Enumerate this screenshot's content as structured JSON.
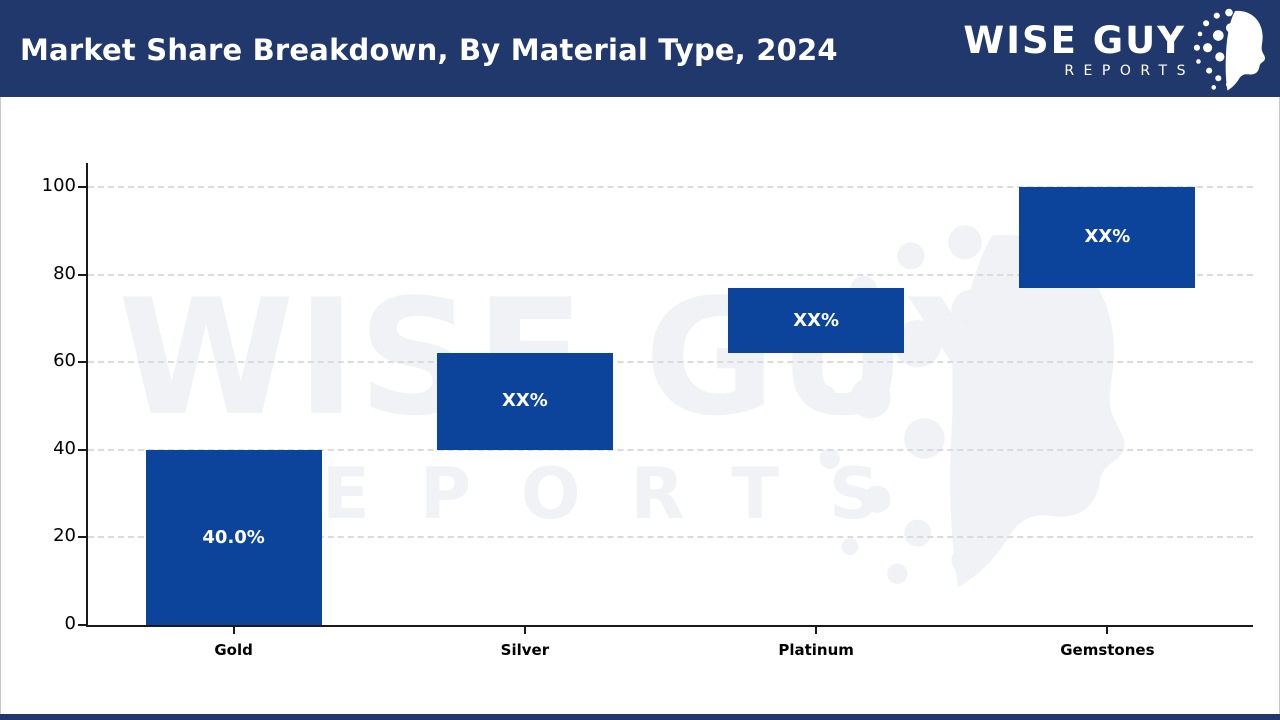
{
  "header": {
    "title": "Market Share Breakdown, By Material Type, 2024",
    "logo": {
      "line1": "WISE GUY",
      "line2": "REPORTS"
    }
  },
  "watermark": {
    "line1": "WISE GUY",
    "line2": "REPORTS"
  },
  "colors": {
    "header_navy": "#20386b",
    "bar_blue": "#0c449c",
    "gridline_gray": "#dbdbdb",
    "watermark_gray": "#f0f2f5",
    "axis_black": "#1a1a1a"
  },
  "chart_data": {
    "type": "bar",
    "subtype": "waterfall",
    "title": "Market Share Breakdown, By Material Type, 2024",
    "categories": [
      "Gold",
      "Silver",
      "Platinum",
      "Gemstones"
    ],
    "bars": [
      {
        "category": "Gold",
        "start": 0,
        "end": 40,
        "label": "40.0%"
      },
      {
        "category": "Silver",
        "start": 40,
        "end": 62,
        "label": "XX%"
      },
      {
        "category": "Platinum",
        "start": 62,
        "end": 77,
        "label": "XX%"
      },
      {
        "category": "Gemstones",
        "start": 77,
        "end": 100,
        "label": "XX%"
      }
    ],
    "values_increment": [
      40,
      22,
      15,
      23
    ],
    "ylim": [
      0,
      100
    ],
    "yticks": [
      0,
      20,
      40,
      60,
      80,
      100
    ],
    "xlabel": "",
    "ylabel": "",
    "grid": "horizontal-dashed",
    "legend": "none",
    "bar_color": "#0c449c"
  }
}
